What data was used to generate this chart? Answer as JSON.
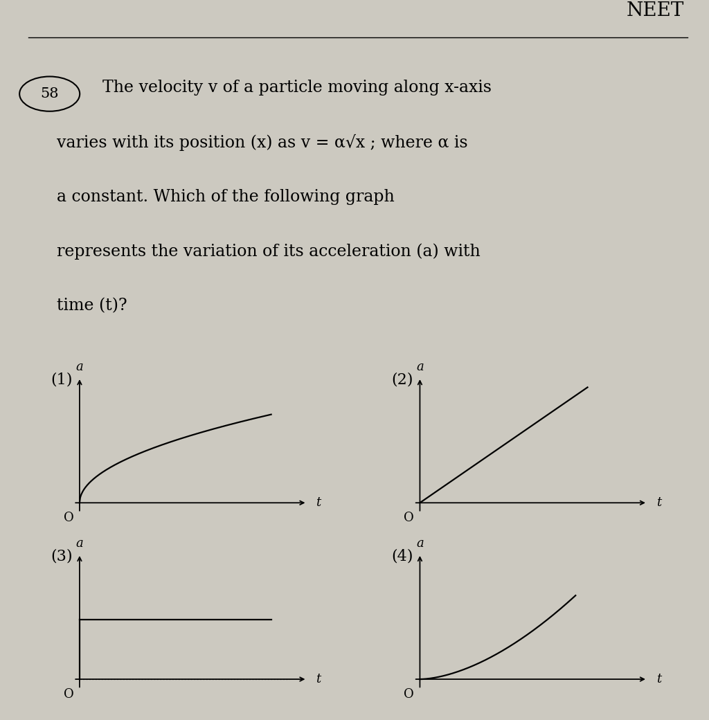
{
  "bg_color": "#ccc9c0",
  "neet_label": "NEET",
  "question_number": "58",
  "q_line1": "The velocity v of a particle moving along x-axis",
  "q_line2": "varies with its position (x) as v = α√x ; where α is",
  "q_line3": "a constant. Which of the following graph",
  "q_line4": "represents the variation of its acceleration (a) with",
  "q_line5": "time (t)?",
  "graph_t_label": "t",
  "graph_a_label": "a",
  "graph_o_label": "O",
  "opt1": "(1)",
  "opt2": "(2)",
  "opt3": "(3)",
  "opt4": "(4)",
  "font_size_neet": 20,
  "font_size_q": 17,
  "font_size_opt": 16,
  "font_size_axis": 13,
  "font_size_origin": 13
}
